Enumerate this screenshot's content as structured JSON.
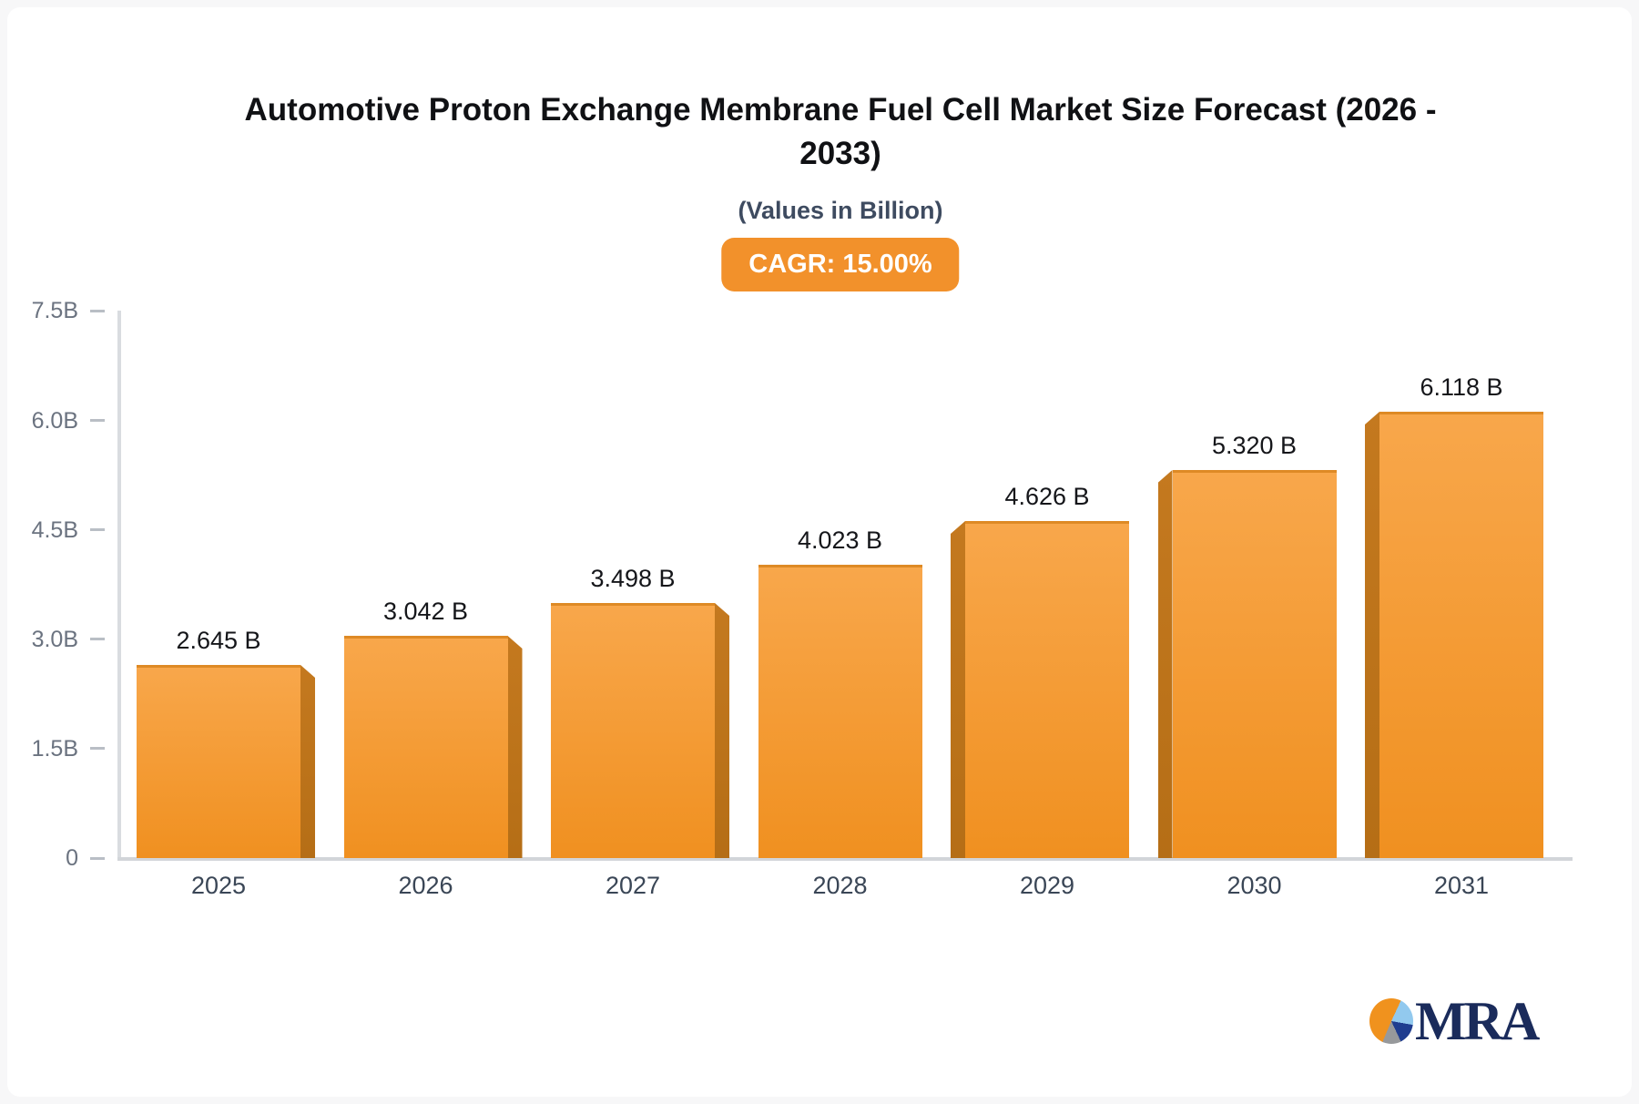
{
  "page": {
    "background_color": "#f7f7f8",
    "card_color": "#ffffff"
  },
  "header": {
    "title_line1": "Automotive Proton Exchange Membrane Fuel Cell Market Size Forecast (2026 -",
    "title_line2": "2033)",
    "subtitle": "(Values in Billion)",
    "cagr_badge_label": "CAGR: 15.00%",
    "badge_color": "#F2912B",
    "badge_text_color": "#FFFFFF"
  },
  "chart_data": {
    "type": "bar",
    "title": "Automotive Proton Exchange Membrane Fuel Cell Market Size Forecast (2026 - 2033)",
    "subtitle": "(Values in Billion)",
    "annotation": "CAGR: 15.00%",
    "categories": [
      "2025",
      "2026",
      "2027",
      "2028",
      "2029",
      "2030",
      "2031"
    ],
    "values": [
      2.645,
      3.042,
      3.498,
      4.023,
      4.626,
      5.32,
      6.118
    ],
    "value_labels": [
      "2.645 B",
      "3.042 B",
      "3.498 B",
      "4.023 B",
      "4.626 B",
      "5.320 B",
      "6.118 B"
    ],
    "xlabel": "",
    "ylabel": "",
    "ylim": [
      0,
      7.5
    ],
    "yticks": [
      0,
      1.5,
      3,
      4.5,
      6,
      7.5
    ],
    "ytick_labels": [
      "0",
      "1.5B",
      "3.0B",
      "4.5B",
      "6.0B",
      "7.5B"
    ],
    "grid": false,
    "legend": false,
    "bar_style": "3d-extruded",
    "bar_color_top": "#F8A74B",
    "bar_color_bottom": "#F09020",
    "bar_edge_color": "#DE8A25",
    "bar_side_color": "#BD7219",
    "axis_color": "#D6D9DD",
    "tick_color": "#B9BEC5",
    "ytick_text_color": "#6B7380",
    "xtick_text_color": "#3A4656",
    "value_label_color": "#15161A"
  },
  "logo": {
    "text": "MRA",
    "text_color": "#1A2B5B",
    "pie_colors": [
      "#F0921E",
      "#92C9EE",
      "#1F3D8F",
      "#97999B"
    ]
  }
}
